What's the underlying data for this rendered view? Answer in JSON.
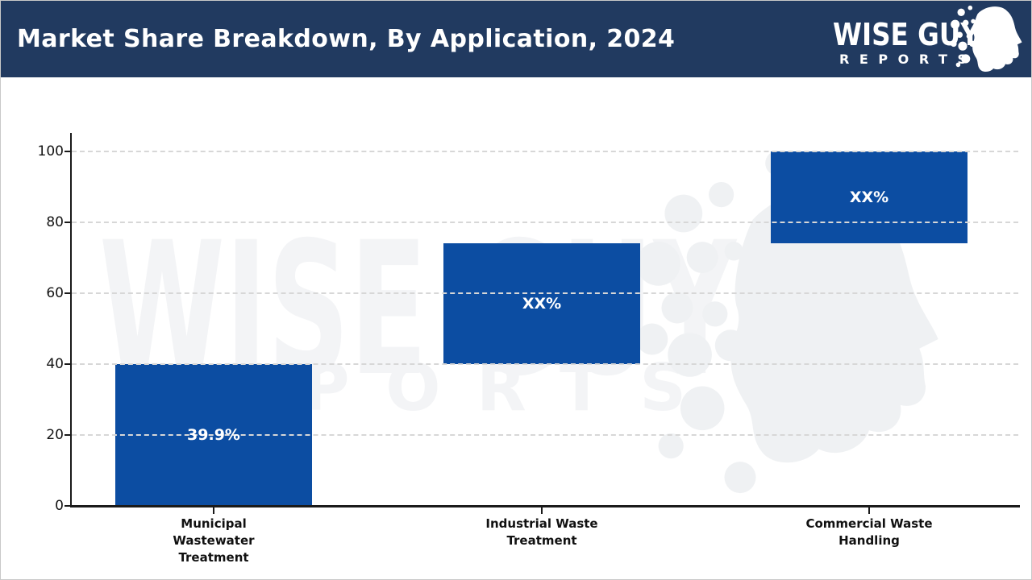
{
  "header": {
    "title": "Market Share Breakdown, By Application, 2024",
    "bg_color": "#213A60",
    "logo": {
      "line1": "WISE GUY",
      "line2": "REPORTS"
    }
  },
  "watermark": {
    "line1": "WISE GUY",
    "line2": "REPORTS"
  },
  "chart_data": {
    "type": "bar",
    "subtype": "waterfall",
    "title": "Market Share Breakdown, By Application, 2024",
    "categories": [
      "Municipal Wastewater Treatment",
      "Industrial Waste Treatment",
      "Commercial Waste Handling"
    ],
    "categories_lines": [
      [
        "Municipal",
        "Wastewater",
        "Treatment"
      ],
      [
        "Industrial Waste",
        "Treatment"
      ],
      [
        "Commercial Waste",
        "Handling"
      ]
    ],
    "segments": [
      {
        "start": 0,
        "end": 39.9,
        "label": "39.9%"
      },
      {
        "start": 39.9,
        "end": 74,
        "label": "XX%"
      },
      {
        "start": 74,
        "end": 100,
        "label": "XX%"
      }
    ],
    "yticks": [
      0,
      20,
      40,
      60,
      80,
      100
    ],
    "ytick_labels": [
      "0",
      "20",
      "40",
      "60",
      "80",
      "100"
    ],
    "ylim": [
      0,
      105
    ],
    "grid": "horizontal dashed, drawn above bars",
    "legend": "none",
    "bar_color": "#0C4DA2",
    "bar_label_color": "#FFFFFF",
    "gridline_color": "#D7D7D7",
    "axis_color": "#1A1A1A"
  }
}
